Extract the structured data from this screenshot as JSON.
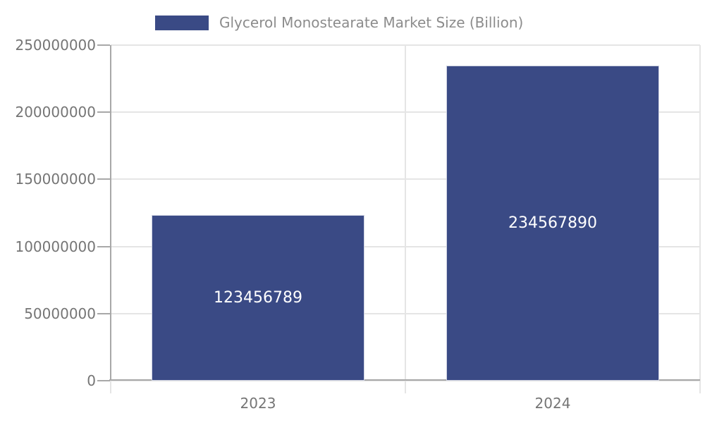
{
  "chart_data": {
    "type": "bar",
    "title": "Glycerol Monostearate Market Size (Billion)",
    "series_name": "Glycerol Monostearate Market Size (Billion)",
    "categories": [
      "2023",
      "2024"
    ],
    "values": [
      123456789,
      234567890
    ],
    "bar_labels": [
      "123456789",
      "234567890"
    ],
    "xlabel": "",
    "ylabel": "",
    "ylim": [
      0,
      250000000
    ],
    "yticks": [
      0,
      50000000,
      100000000,
      150000000,
      200000000,
      250000000
    ],
    "ytick_labels": [
      "0",
      "50000000",
      "100000000",
      "150000000",
      "200000000",
      "250000000"
    ],
    "grid": true,
    "legend_position": "top",
    "colors": {
      "bar": "#3a4a85",
      "bar_border": "#cfd3e2",
      "bar_label": "#ffffff",
      "legend_text": "#8c8c8c",
      "axis_label": "#757575",
      "grid_line": "#e5e5e5",
      "axis_line": "#a8a8a8"
    }
  }
}
